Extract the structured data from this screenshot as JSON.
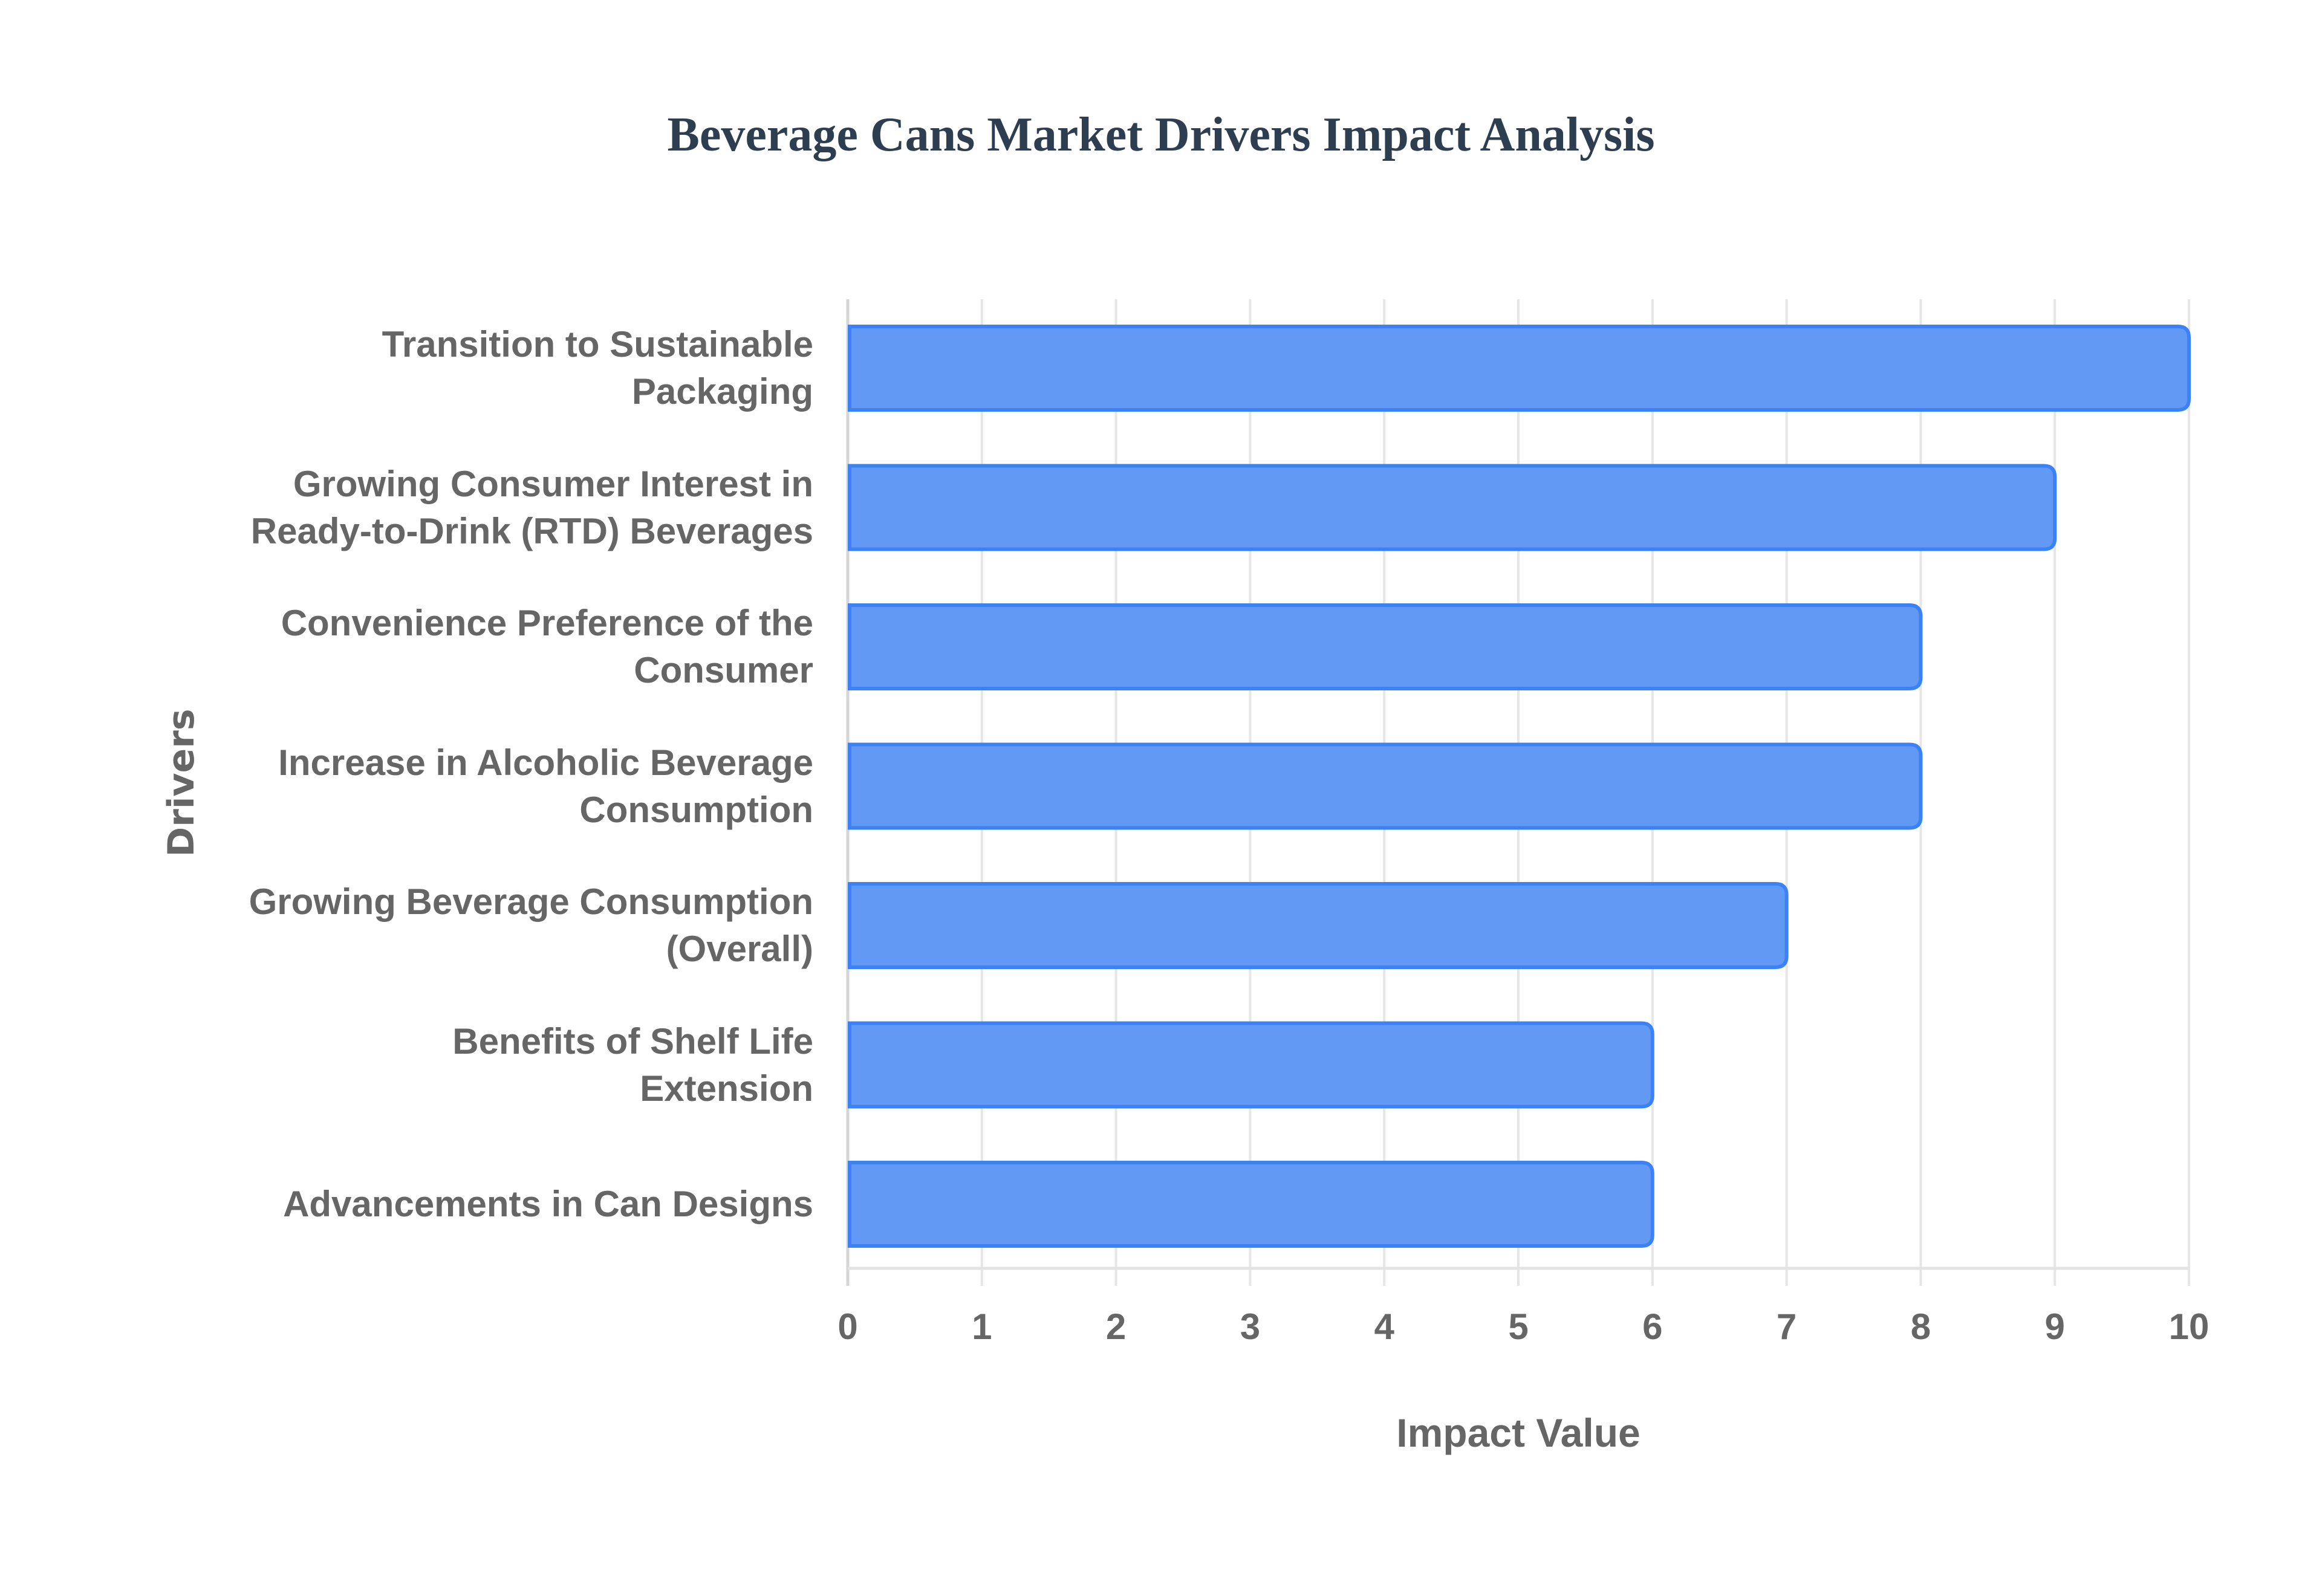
{
  "chart_data": {
    "type": "bar",
    "orientation": "horizontal",
    "title": "Beverage Cans Market Drivers Impact Analysis",
    "xlabel": "Impact Value",
    "ylabel": "Drivers",
    "xlim": [
      0,
      10
    ],
    "x_ticks": [
      "0",
      "1",
      "2",
      "3",
      "4",
      "5",
      "6",
      "7",
      "8",
      "9",
      "10"
    ],
    "grid": true,
    "legend": null,
    "bar_color": "#6199f4",
    "bar_border_color": "#3b82f6",
    "categories": [
      "Transition to Sustainable Packaging",
      "Growing Consumer Interest in Ready-to-Drink (RTD) Beverages",
      "Convenience Preference of the Consumer",
      "Increase in Alcoholic Beverage Consumption",
      "Growing Beverage Consumption (Overall)",
      "Benefits of Shelf Life Extension",
      "Advancements in Can Designs"
    ],
    "category_label_lines": [
      [
        "Transition to Sustainable",
        "Packaging"
      ],
      [
        "Growing Consumer Interest in",
        "Ready-to-Drink (RTD) Beverages"
      ],
      [
        "Convenience Preference of the",
        "Consumer"
      ],
      [
        "Increase in Alcoholic Beverage",
        "Consumption"
      ],
      [
        "Growing Beverage Consumption",
        "(Overall)"
      ],
      [
        "Benefits of Shelf Life",
        "Extension"
      ],
      [
        "Advancements in Can Designs"
      ]
    ],
    "values": [
      10,
      9,
      8,
      8,
      7,
      6,
      6
    ]
  }
}
